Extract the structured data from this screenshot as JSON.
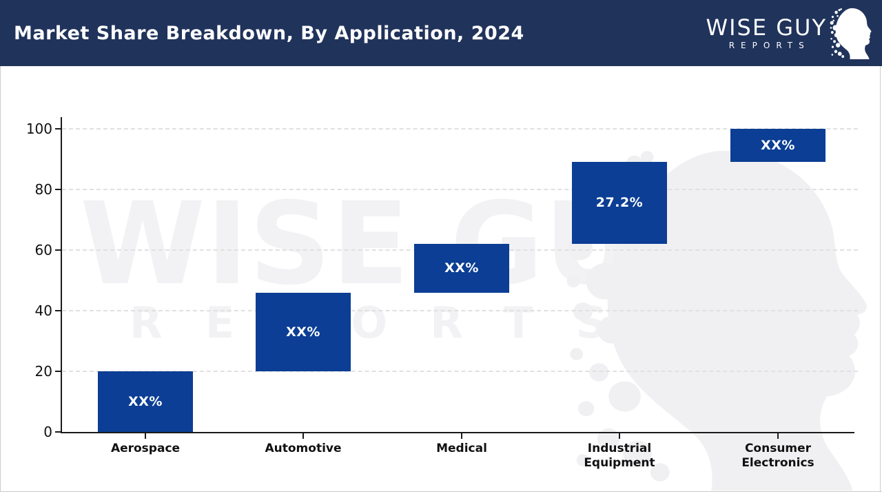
{
  "header": {
    "title": "Market Share Breakdown, By Application, 2024",
    "logo": {
      "line1": "WISE GUY",
      "line2": "REPORTS"
    }
  },
  "watermark": {
    "line1": "WISE GUY",
    "line2": "REPORTS"
  },
  "chart_data": {
    "type": "bar",
    "subtype": "floating-segment (waterfall-style) market share bars",
    "title": "Market Share Breakdown, By Application, 2024",
    "categories": [
      "Aerospace",
      "Automotive",
      "Medical",
      "Industrial Equipment",
      "Consumer Electronics"
    ],
    "segments": [
      {
        "category": "Aerospace",
        "start": 0,
        "end": 20,
        "value": 20,
        "label": "XX%"
      },
      {
        "category": "Automotive",
        "start": 20,
        "end": 46,
        "value": 26,
        "label": "XX%"
      },
      {
        "category": "Medical",
        "start": 46,
        "end": 62,
        "value": 16,
        "label": "XX%"
      },
      {
        "category": "Industrial Equipment",
        "start": 62,
        "end": 89.2,
        "value": 27.2,
        "label": "27.2%"
      },
      {
        "category": "Consumer Electronics",
        "start": 89.2,
        "end": 100,
        "value": 10.8,
        "label": "XX%"
      }
    ],
    "ylim": [
      0,
      100
    ],
    "yticks": [
      0,
      20,
      40,
      60,
      80,
      100
    ],
    "ytick_labels": [
      "0",
      "20",
      "40",
      "60",
      "80",
      "100"
    ],
    "xlabel": "",
    "ylabel": "",
    "grid": "horizontal dashed",
    "legend": "none",
    "colors": {
      "bar": "#0b3e94",
      "header_bg": "#20335b",
      "bar_label_text": "#ffffff",
      "grid": "#e0e0e0",
      "axis": "#1a1a1a",
      "watermark": "#f2f2f4"
    }
  }
}
